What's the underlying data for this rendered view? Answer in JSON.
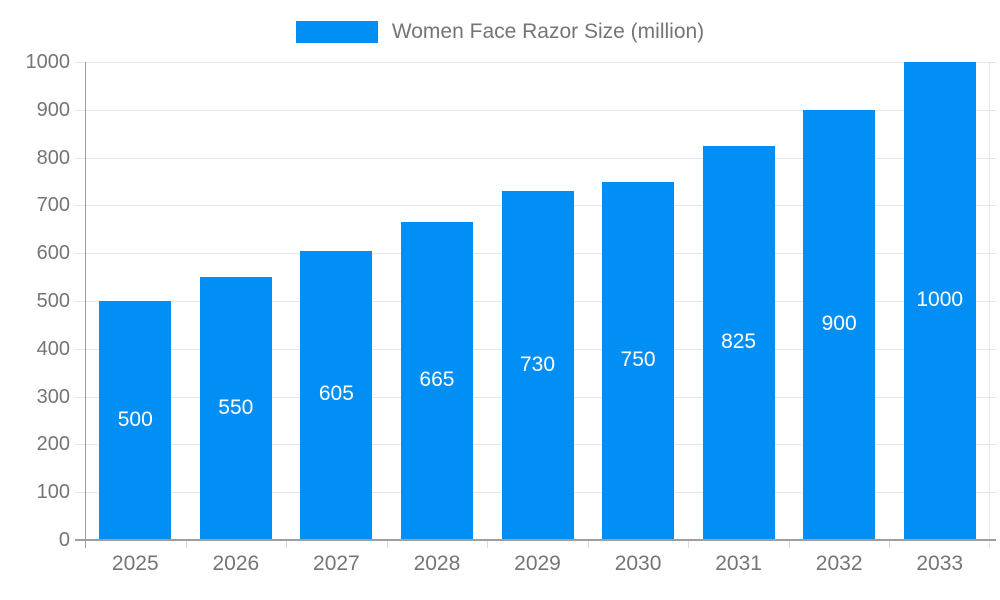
{
  "legend": {
    "label": "Women Face Razor Size (million)"
  },
  "chart_data": {
    "type": "bar",
    "title": "Women Face Razor Size (million)",
    "categories": [
      "2025",
      "2026",
      "2027",
      "2028",
      "2029",
      "2030",
      "2031",
      "2032",
      "2033"
    ],
    "values": [
      500,
      550,
      605,
      665,
      730,
      750,
      825,
      900,
      1000
    ],
    "xlabel": "",
    "ylabel": "",
    "ylim": [
      0,
      1000
    ],
    "ytick_step": 100,
    "ytick_labels": [
      "0",
      "100",
      "200",
      "300",
      "400",
      "500",
      "600",
      "700",
      "800",
      "900",
      "1000"
    ],
    "grid": true,
    "legend_position": "top",
    "data_labels_inside_bars": true,
    "colors": {
      "bar": "#028FF5",
      "bar_label_text": "#ffffff",
      "axis_text": "#757575",
      "legend_text": "#757575",
      "gridline": "#e6e6e6",
      "axis_line": "#9e9e9e",
      "boundary_tick": "#d9d9d9",
      "background": "#ffffff"
    }
  }
}
